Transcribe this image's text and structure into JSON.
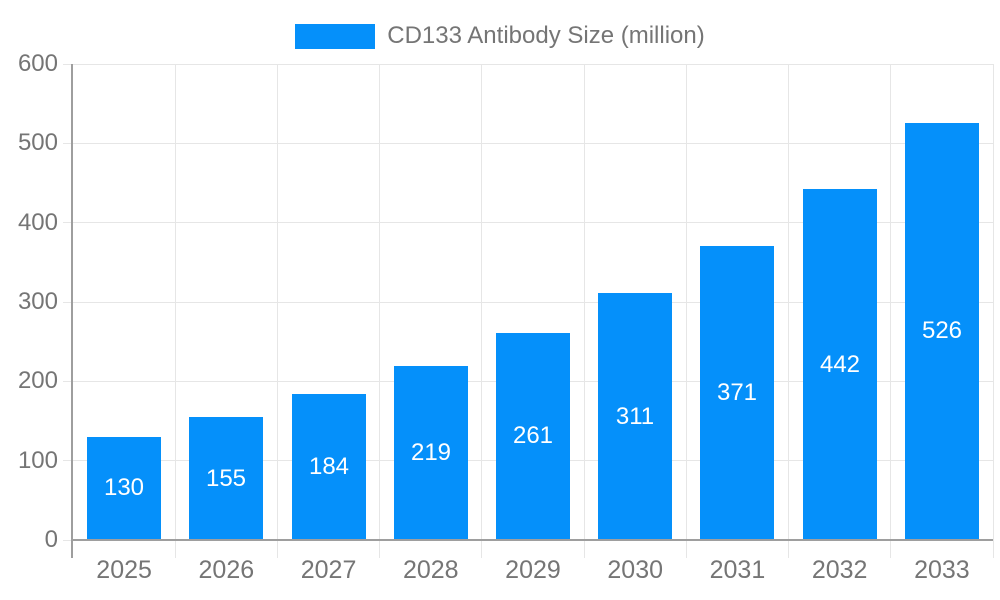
{
  "legend": {
    "label": "CD133 Antibody Size (million)"
  },
  "colors": {
    "bar": "#0590fa",
    "grid": "#e6e6e6",
    "axis": "#9e9e9e",
    "text": "#757575",
    "value_label": "#ffffff",
    "background": "#ffffff"
  },
  "chart_data": {
    "type": "bar",
    "categories": [
      "2025",
      "2026",
      "2027",
      "2028",
      "2029",
      "2030",
      "2031",
      "2032",
      "2033"
    ],
    "values": [
      130,
      155,
      184,
      219,
      261,
      311,
      371,
      442,
      526
    ],
    "title": "CD133 Antibody Size (million)",
    "xlabel": "",
    "ylabel": "",
    "ylim": [
      0,
      600
    ],
    "yticks": [
      0,
      100,
      200,
      300,
      400,
      500,
      600
    ],
    "grid": true,
    "legend_position": "top",
    "value_labels": "inside-center"
  }
}
